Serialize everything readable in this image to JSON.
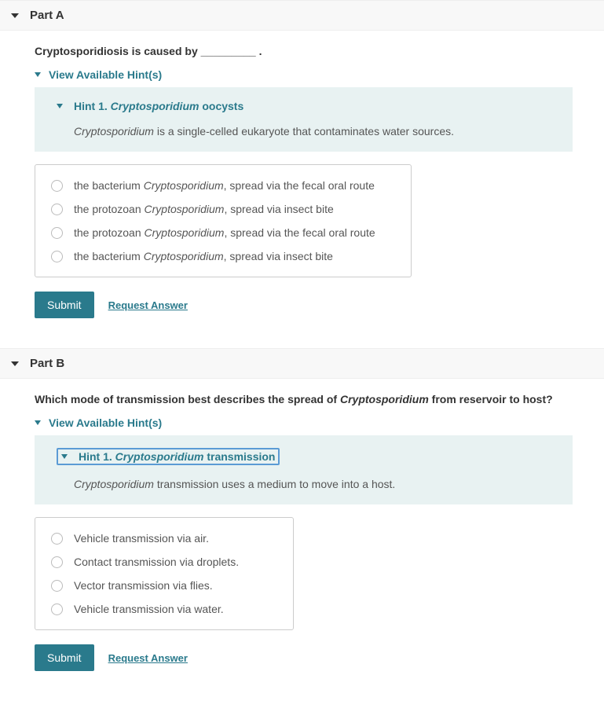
{
  "parts": [
    {
      "title": "Part A",
      "question_prefix": "Cryptosporidiosis is caused by ",
      "question_blank": "_________",
      "question_suffix": " .",
      "hints_toggle": "View Available Hint(s)",
      "hint": {
        "label_prefix": "Hint 1. ",
        "label_italic": "Cryptosporidium",
        "label_suffix": " oocysts",
        "body_italic": "Cryptosporidium",
        "body_rest": " is a single-celled eukaryote that contaminates water sources.",
        "selected": false
      },
      "options_narrow": false,
      "options": [
        {
          "pre": "the bacterium ",
          "italic": "Cryptosporidium",
          "post": ", spread via the fecal oral route"
        },
        {
          "pre": "the protozoan ",
          "italic": "Cryptosporidium",
          "post": ", spread via insect bite"
        },
        {
          "pre": "the protozoan ",
          "italic": "Cryptosporidium",
          "post": ", spread via the fecal oral route"
        },
        {
          "pre": "the bacterium ",
          "italic": "Cryptosporidium",
          "post": ", spread via insect bite"
        }
      ],
      "submit_label": "Submit",
      "request_label": "Request Answer"
    },
    {
      "title": "Part B",
      "question_prefix": "Which mode of transmission best describes the spread of ",
      "question_italic": "Cryptosporidium",
      "question_suffix": " from reservoir to host?",
      "hints_toggle": "View Available Hint(s)",
      "hint": {
        "label_prefix": "Hint 1. ",
        "label_italic": "Cryptosporidium",
        "label_suffix": " transmission",
        "body_italic": "Cryptosporidium",
        "body_rest": " transmission uses a medium to move into a host.",
        "selected": true
      },
      "options_narrow": true,
      "options": [
        {
          "pre": "Vehicle transmission via air.",
          "italic": "",
          "post": ""
        },
        {
          "pre": "Contact transmission via droplets.",
          "italic": "",
          "post": ""
        },
        {
          "pre": "Vector transmission via flies.",
          "italic": "",
          "post": ""
        },
        {
          "pre": "Vehicle transmission via water.",
          "italic": "",
          "post": ""
        }
      ],
      "submit_label": "Submit",
      "request_label": "Request Answer"
    }
  ],
  "colors": {
    "accent": "#2a7a8c",
    "hint_bg": "#e8f2f2",
    "header_bg": "#f8f8f8",
    "border": "#cccccc",
    "selected_border": "#5b9bd5"
  }
}
